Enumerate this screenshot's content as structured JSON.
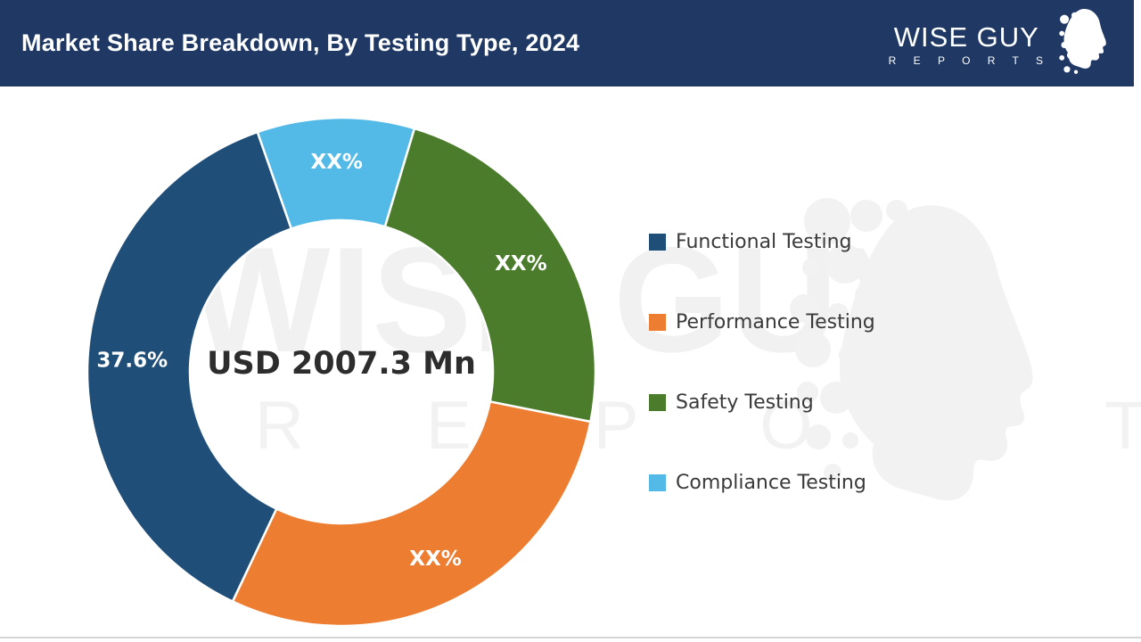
{
  "header": {
    "title": "Market Share Breakdown, By Testing Type, 2024",
    "bg_color": "#1F3864",
    "logo": {
      "line1": "WISE GUY",
      "line2": "R E P O R T S"
    }
  },
  "watermark": {
    "line1": "WISE GUY",
    "line2": "R E P O R T S"
  },
  "chart_data": {
    "type": "pie",
    "subtype": "donut",
    "title": "Market Share Breakdown, By Testing Type, 2024",
    "center_label": "USD 2007.3 Mn",
    "start_angle_deg": 109.3,
    "counterclockwise": true,
    "legend_position": "right",
    "segments": [
      {
        "label": "Functional Testing",
        "display_pct": "37.6%",
        "value_pct": 37.6,
        "color": "#1F4E79"
      },
      {
        "label": "Performance Testing",
        "display_pct": "XX%",
        "value_pct": 28.9,
        "color": "#ED7D31"
      },
      {
        "label": "Safety Testing",
        "display_pct": "XX%",
        "value_pct": 23.5,
        "color": "#4A7C2B"
      },
      {
        "label": "Compliance Testing",
        "display_pct": "XX%",
        "value_pct": 10.0,
        "color": "#53BAE8"
      }
    ]
  }
}
